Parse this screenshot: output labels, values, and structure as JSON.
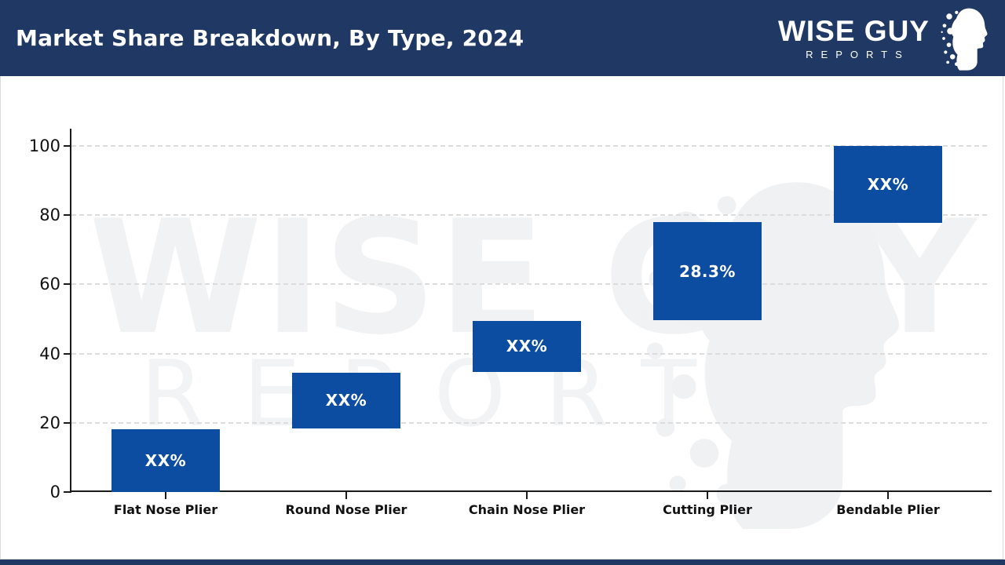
{
  "header": {
    "title": "Market Share Breakdown, By Type, 2024",
    "brand": {
      "line1": "WISE GUY",
      "line2": "REPORTS"
    }
  },
  "watermark": {
    "line1": "WISE GUY",
    "line2": "REPORTS"
  },
  "colors": {
    "header_bg": "#203864",
    "footer_bg": "#203864",
    "bar": "#0c4da2",
    "grid": "#dcdcdc",
    "axis": "#1a1a1a",
    "bar_label": "#ffffff",
    "watermark": "#f1f2f4"
  },
  "chart_data": {
    "type": "bar",
    "subtype": "floating-segment-waterfall",
    "title": "Market Share Breakdown, By Type, 2024",
    "categories": [
      "Flat Nose Plier",
      "Round Nose Plier",
      "Chain Nose Plier",
      "Cutting Plier",
      "Bendable Plier"
    ],
    "segments": [
      {
        "category": "Flat Nose Plier",
        "start": 0,
        "end": 18.1,
        "label": "XX%"
      },
      {
        "category": "Round Nose Plier",
        "start": 18.4,
        "end": 34.5,
        "label": "XX%"
      },
      {
        "category": "Chain Nose Plier",
        "start": 34.8,
        "end": 49.4,
        "label": "XX%"
      },
      {
        "category": "Cutting Plier",
        "start": 49.6,
        "end": 77.9,
        "label": "28.3%"
      },
      {
        "category": "Bendable Plier",
        "start": 77.7,
        "end": 100,
        "label": "XX%"
      }
    ],
    "xlabel": "",
    "ylabel": "",
    "ylim": [
      0,
      100
    ],
    "yticks": [
      0,
      20,
      40,
      60,
      80,
      100
    ],
    "grid": "horizontal-dashed",
    "legend": "none",
    "bar_color": "#0c4da2"
  }
}
